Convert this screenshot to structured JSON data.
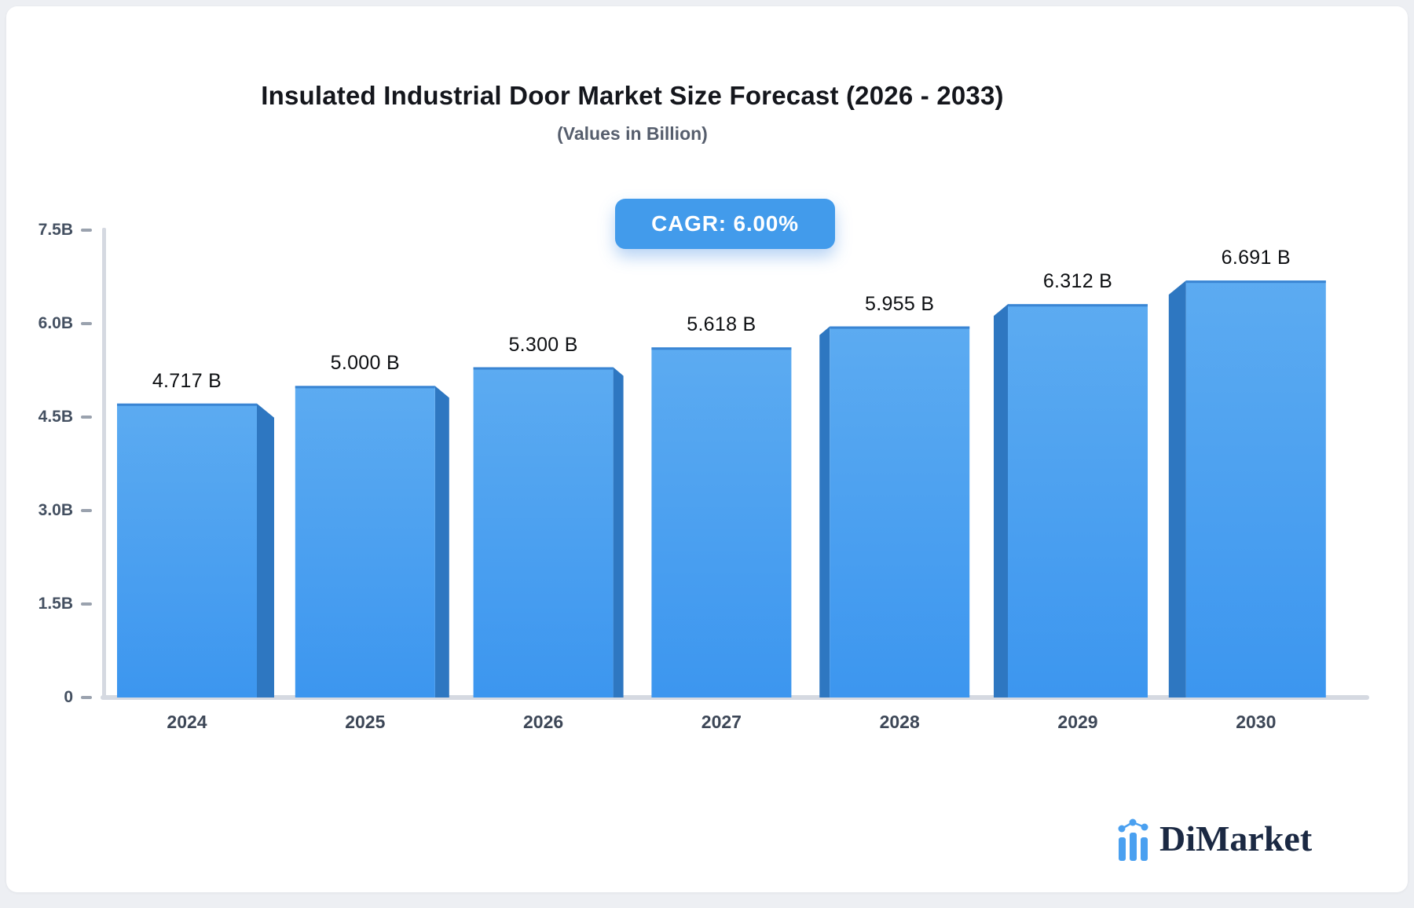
{
  "page": {
    "background": "#edeff3",
    "card_background": "#ffffff"
  },
  "header": {
    "title": "Insulated Industrial Door Market Size Forecast (2026 - 2033)",
    "subtitle": "(Values in Billion)"
  },
  "badge": {
    "label": "CAGR: 6.00%",
    "background": "#429BEB",
    "text_color": "#ffffff"
  },
  "chart_data": {
    "type": "bar",
    "title": "Insulated Industrial Door Market Size Forecast (2026 - 2033)",
    "subtitle": "(Values in Billion)",
    "xlabel": "",
    "ylabel": "",
    "categories": [
      "2024",
      "2025",
      "2026",
      "2027",
      "2028",
      "2029",
      "2030"
    ],
    "values": [
      4.717,
      5.0,
      5.3,
      5.618,
      5.955,
      6.312,
      6.691
    ],
    "value_labels": [
      "4.717 B",
      "5.000 B",
      "5.300 B",
      "5.618 B",
      "5.955 B",
      "6.312 B",
      "6.691 B"
    ],
    "unit": "Billion",
    "ylim": [
      0,
      7.5
    ],
    "yticks": [
      0,
      1.5,
      3.0,
      4.5,
      6.0,
      7.5
    ],
    "ytick_labels": [
      "0",
      "1.5B",
      "3.0B",
      "4.5B",
      "6.0B",
      "7.5B"
    ],
    "grid": false,
    "legend": null,
    "bar_style": "3d-extruded",
    "colors": {
      "bar_face_top": "#5CABF1",
      "bar_face_bottom": "#3C96EF",
      "bar_side": "#2E77C1",
      "bar_top_line": "#3A85D3",
      "axis_line": "#D5D9E1",
      "tick_dash": "#9AA2AE",
      "tick_text": "#445061",
      "value_text": "#0D0F12"
    }
  },
  "logo": {
    "text": "DiMarket",
    "icon": "bar-line-chart-icon",
    "icon_color": "#4AA0F0",
    "text_color": "#1B2943"
  }
}
